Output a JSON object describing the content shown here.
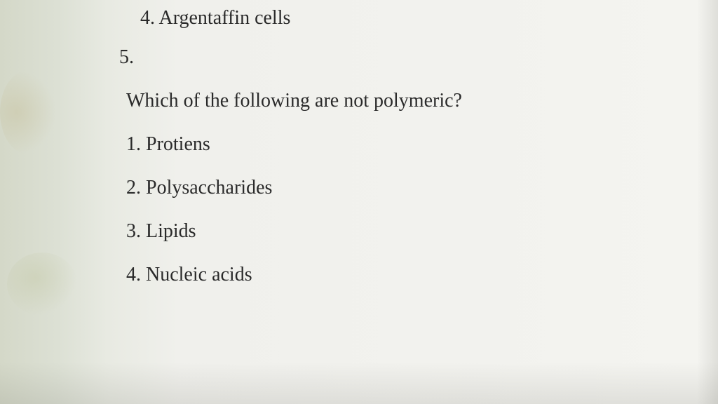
{
  "previous_answer": {
    "number": "4.",
    "text": "Argentaffin cells"
  },
  "question_number": "5.",
  "question_text": "Which of the following are not polymeric?",
  "options": [
    {
      "num": "1.",
      "text": "Protiens"
    },
    {
      "num": "2.",
      "text": "Polysaccharides"
    },
    {
      "num": "3.",
      "text": "Lipids"
    },
    {
      "num": "4.",
      "text": "Nucleic acids"
    }
  ],
  "colors": {
    "text": "#2a2a2a",
    "paper_light": "#f4f4f0",
    "paper_shadow": "#d4d8c8"
  },
  "typography": {
    "font_family": "Georgia, Times New Roman, serif",
    "font_size": 28
  }
}
